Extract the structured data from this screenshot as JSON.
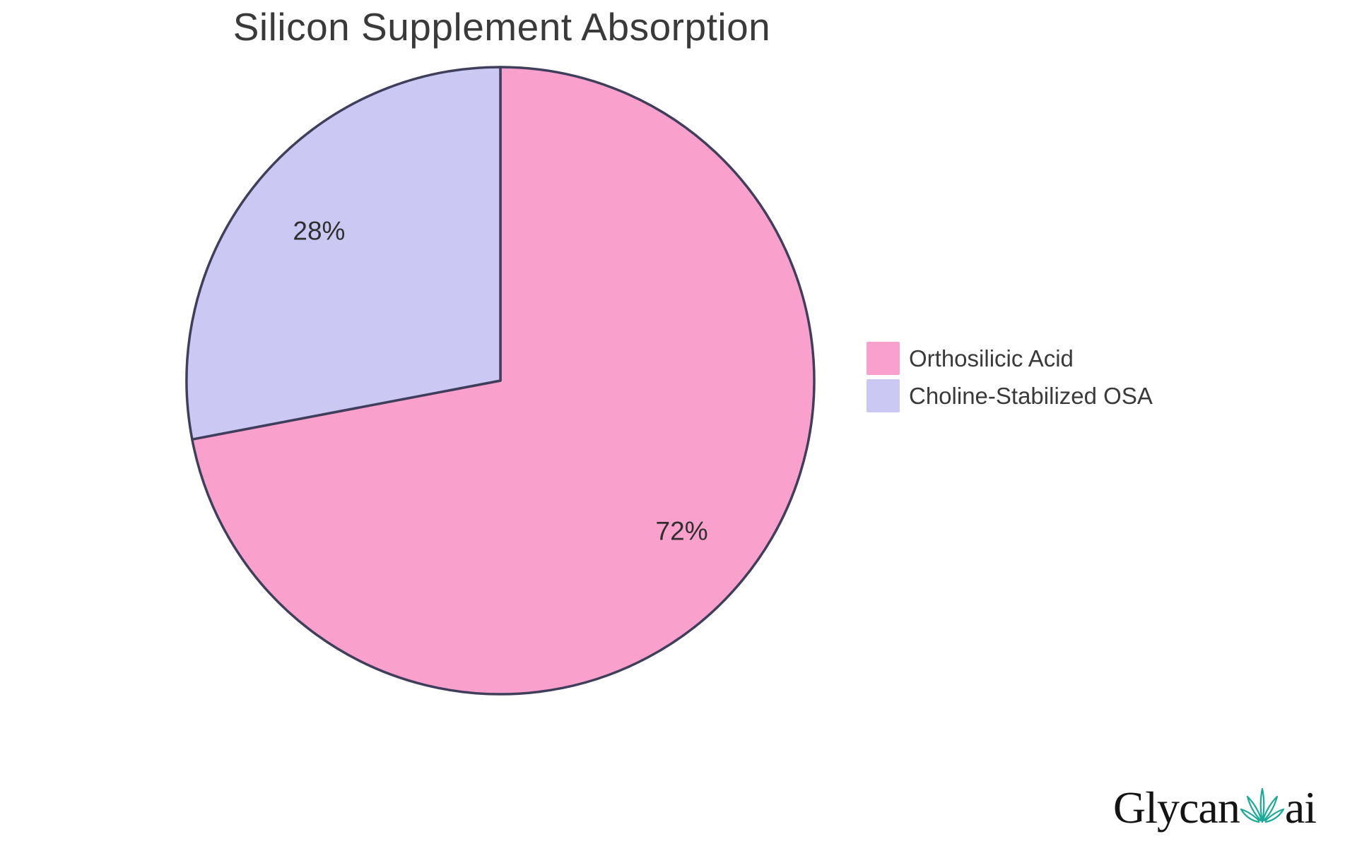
{
  "chart_data": {
    "type": "pie",
    "title": "Silicon Supplement Absorption",
    "labels": [
      "Orthosilicic Acid",
      "Choline-Stabilized OSA"
    ],
    "values": [
      72,
      28
    ],
    "slice_labels": [
      "72%",
      "28%"
    ],
    "colors": [
      "#F9A0CD",
      "#CBC9F4"
    ],
    "stroke_color": "#3F3F5C",
    "stroke_width": 3.5,
    "start_angle_deg": -90,
    "direction": "clockwise",
    "label_radius_fraction": 0.75,
    "legend_position": "right",
    "background": "#FFFFFF"
  },
  "logo": {
    "text_left": "Glycan",
    "text_right": "ai",
    "icon": "agave-plant-icon",
    "icon_color": "#1BAA98",
    "text_color": "#141414"
  }
}
